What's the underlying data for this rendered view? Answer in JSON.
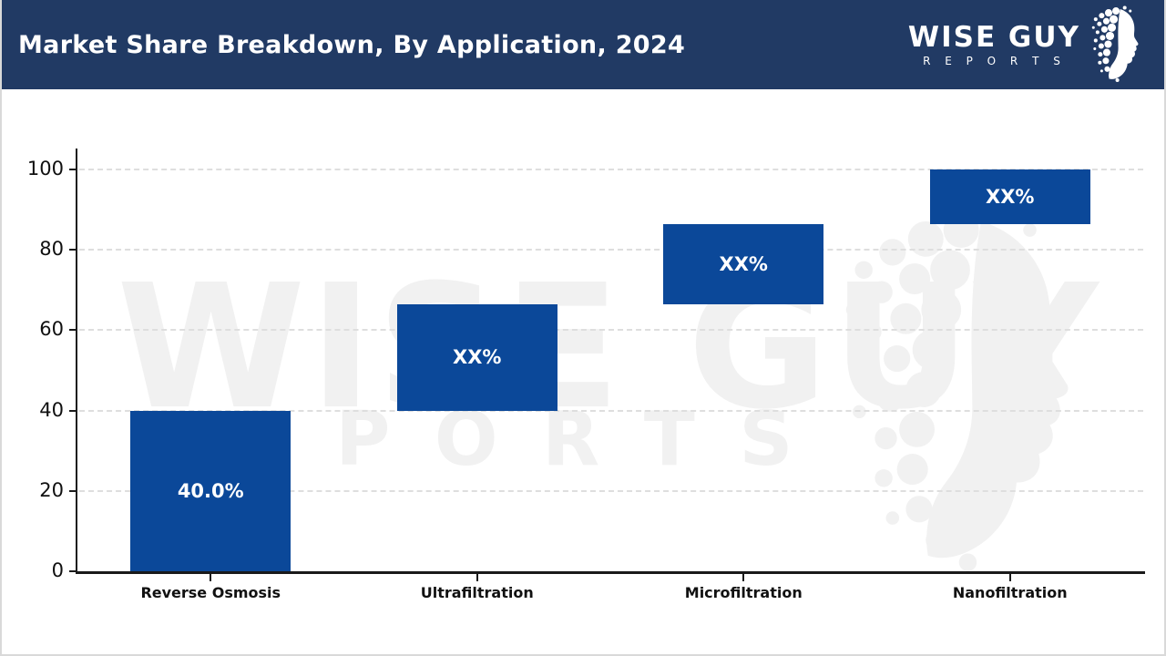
{
  "header": {
    "title": "Market Share Breakdown, By Application, 2024",
    "logo": {
      "line1": "WISE GUY",
      "line2": "R E P O R T S"
    }
  },
  "watermark": {
    "line1": "WISE GUY",
    "line2": "R E P O R T S"
  },
  "colors": {
    "header_bg": "#213a64",
    "header_text": "#ffffff",
    "watermark": "#f1f1f1",
    "page_bg": "#ffffff",
    "border": "#d9d9d9",
    "bar": "#0b4899",
    "bar_label": "#ffffff",
    "axis": "#1a1a1a",
    "grid": "#dedede",
    "tick_text": "#101010"
  },
  "chart_data": {
    "type": "bar",
    "subtype": "waterfall",
    "title": "Market Share Breakdown, By Application, 2024",
    "categories": [
      "Reverse Osmosis",
      "Ultrafiltration",
      "Microfiltration",
      "Nanofiltration"
    ],
    "series": [
      {
        "name": "Market Share",
        "segments": [
          [
            0,
            40
          ],
          [
            40,
            66.5
          ],
          [
            66.5,
            86.5
          ],
          [
            86.5,
            100
          ]
        ],
        "values": [
          40,
          26.5,
          20,
          13.5
        ]
      }
    ],
    "bar_labels": [
      "40.0%",
      "XX%",
      "XX%",
      "XX%"
    ],
    "xlabel": "",
    "ylabel": "",
    "ylim": [
      0,
      105
    ],
    "yticks": [
      0,
      20,
      40,
      60,
      80,
      100
    ],
    "grid": "horizontal-dashed",
    "legend": "none"
  }
}
